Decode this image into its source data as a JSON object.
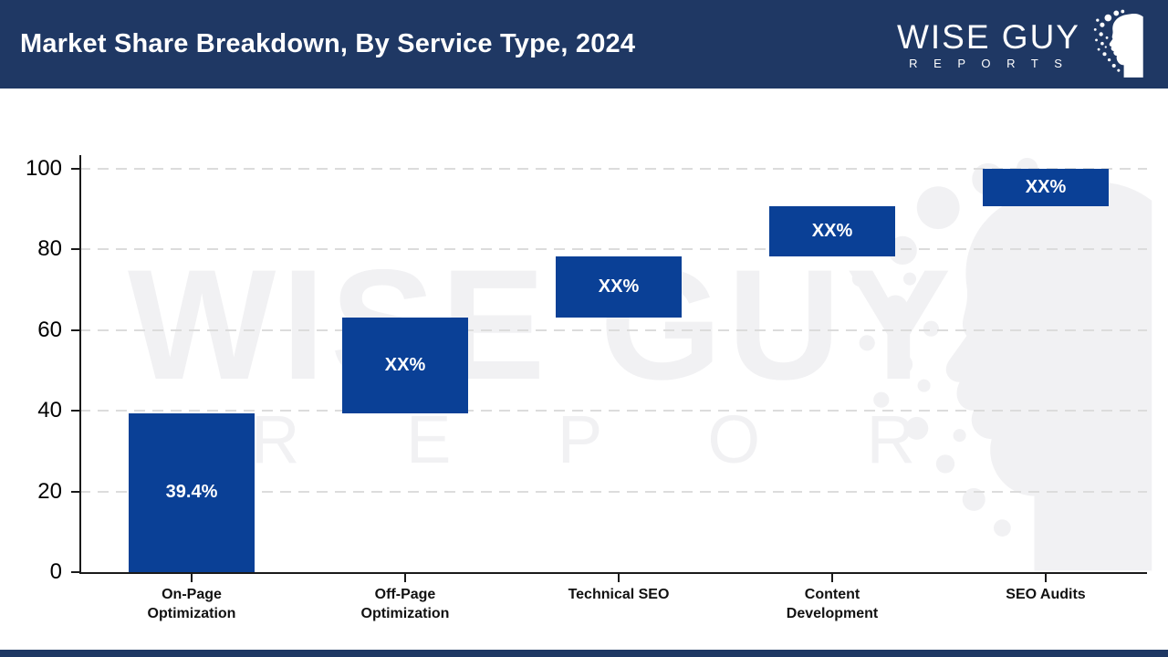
{
  "header": {
    "title": "Market Share Breakdown, By Service Type, 2024",
    "background": "#1f3864",
    "logo": {
      "wordmark": "WISE GUY",
      "subtext": "R E P O R T S"
    }
  },
  "footer": {
    "background": "#1f3864"
  },
  "watermark": {
    "wordmark": "WISE GUY",
    "subtext": "R E P O R T S"
  },
  "chart_data": {
    "type": "bar",
    "variant": "waterfall",
    "title": "Market Share Breakdown, By Service Type, 2024",
    "categories": [
      "On-Page\nOptimization",
      "Off-Page\nOptimization",
      "Technical SEO",
      "Content\nDevelopment",
      "SEO Audits"
    ],
    "series": [
      {
        "name": "Market Share",
        "segments": [
          {
            "category": "On-Page Optimization",
            "start": 0,
            "end": 39.4,
            "label": "39.4%"
          },
          {
            "category": "Off-Page Optimization",
            "start": 39.4,
            "end": 63.0,
            "label": "XX%"
          },
          {
            "category": "Technical SEO",
            "start": 63.0,
            "end": 78.3,
            "label": "XX%"
          },
          {
            "category": "Content Development",
            "start": 78.3,
            "end": 90.6,
            "label": "XX%"
          },
          {
            "category": "SEO Audits",
            "start": 90.6,
            "end": 100.0,
            "label": "XX%"
          }
        ]
      }
    ],
    "yticks": [
      0,
      20,
      40,
      60,
      80,
      100
    ],
    "ylim": [
      0,
      103
    ],
    "xlabel": "",
    "ylabel": "",
    "bar_color": "#0a4096",
    "bar_label_color": "#ffffff",
    "grid": "horizontal-dashed",
    "gridline_color": "#dcdcdc",
    "legend": "none"
  }
}
